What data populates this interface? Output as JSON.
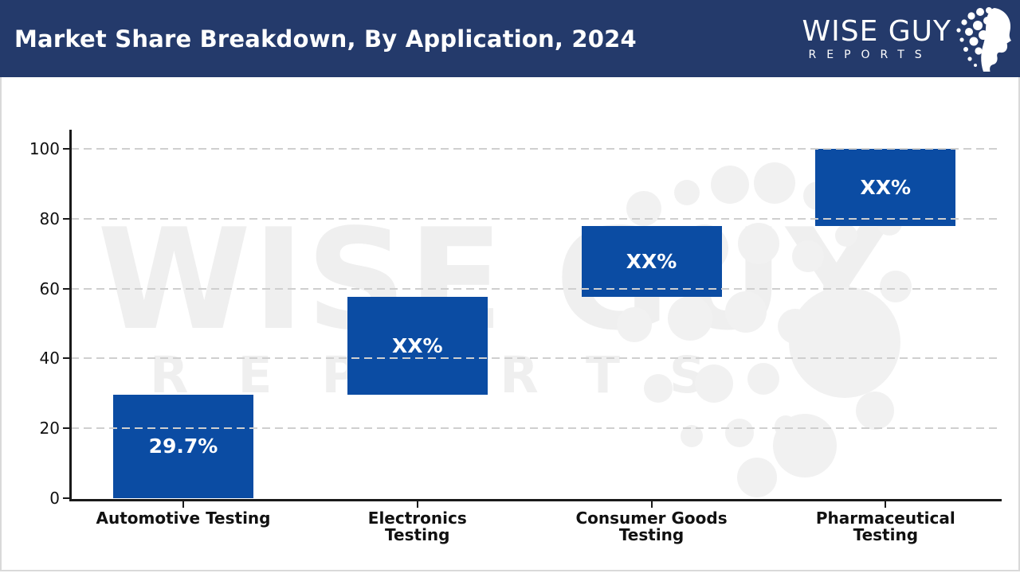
{
  "header": {
    "title": "Market Share Breakdown, By Application, 2024",
    "logo": {
      "wordmark": "WISE GUY",
      "subtext": "REPORTS"
    }
  },
  "watermark": {
    "wordmark": "WISE GUY",
    "subtext": "REPORTS"
  },
  "chart_data": {
    "type": "bar",
    "variant": "waterfall (stacked segments, each bar starts where previous ends)",
    "title": "Market Share Breakdown, By Application, 2024",
    "categories": [
      "Automotive Testing",
      "Electronics Testing",
      "Consumer Goods Testing",
      "Pharmaceutical Testing"
    ],
    "category_lines": [
      [
        "Automotive Testing"
      ],
      [
        "Electronics",
        "Testing"
      ],
      [
        "Consumer Goods",
        "Testing"
      ],
      [
        "Pharmaceutical",
        "Testing"
      ]
    ],
    "segments": [
      {
        "category": "Automotive Testing",
        "start": 0,
        "end": 29.7,
        "label": "29.7%"
      },
      {
        "category": "Electronics Testing",
        "start": 29.7,
        "end": 57.7,
        "label": "XX%"
      },
      {
        "category": "Consumer Goods Testing",
        "start": 57.7,
        "end": 77.8,
        "label": "XX%"
      },
      {
        "category": "Pharmaceutical Testing",
        "start": 77.8,
        "end": 100,
        "label": "XX%"
      }
    ],
    "y_ticks": [
      0,
      20,
      40,
      60,
      80,
      100
    ],
    "ylim": [
      0,
      104.5
    ],
    "xlabel": "",
    "ylabel": "",
    "grid": "horizontal dashed, drawn over bars",
    "legend": "none",
    "bar_color": "#0B4CA3",
    "value_label_color": "#FFFFFF"
  },
  "colors": {
    "header_bg": "#243A6B",
    "bar": "#0B4CA3",
    "grid": "#CFCFCF",
    "axis": "#1A1A1A",
    "watermark": "#EFEFEF",
    "edge": "#D9D9D9"
  }
}
